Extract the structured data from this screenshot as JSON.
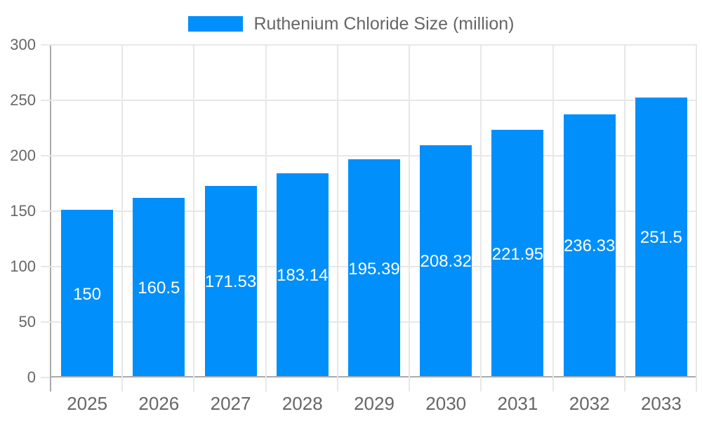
{
  "legend": {
    "label": "Ruthenium Chloride Size (million)"
  },
  "chart_data": {
    "type": "bar",
    "title": "Ruthenium Chloride Size (million)",
    "categories": [
      "2025",
      "2026",
      "2027",
      "2028",
      "2029",
      "2030",
      "2031",
      "2032",
      "2033"
    ],
    "values": [
      150,
      160.5,
      171.53,
      183.14,
      195.39,
      208.32,
      221.95,
      236.33,
      251.5
    ],
    "value_labels": [
      "150",
      "160.5",
      "171.53",
      "183.14",
      "195.39",
      "208.32",
      "221.95",
      "236.33",
      "251.5"
    ],
    "xlabel": "",
    "ylabel": "",
    "ylim": [
      0,
      300
    ],
    "yticks": [
      0,
      50,
      100,
      150,
      200,
      250,
      300
    ],
    "grid": true,
    "legend_position": "top",
    "colors": {
      "bar": "#008FFB",
      "axis": "#ABABAB",
      "grid": "#E7E7E7",
      "tick_text": "#666666",
      "data_label": "#FFFFFF"
    }
  }
}
